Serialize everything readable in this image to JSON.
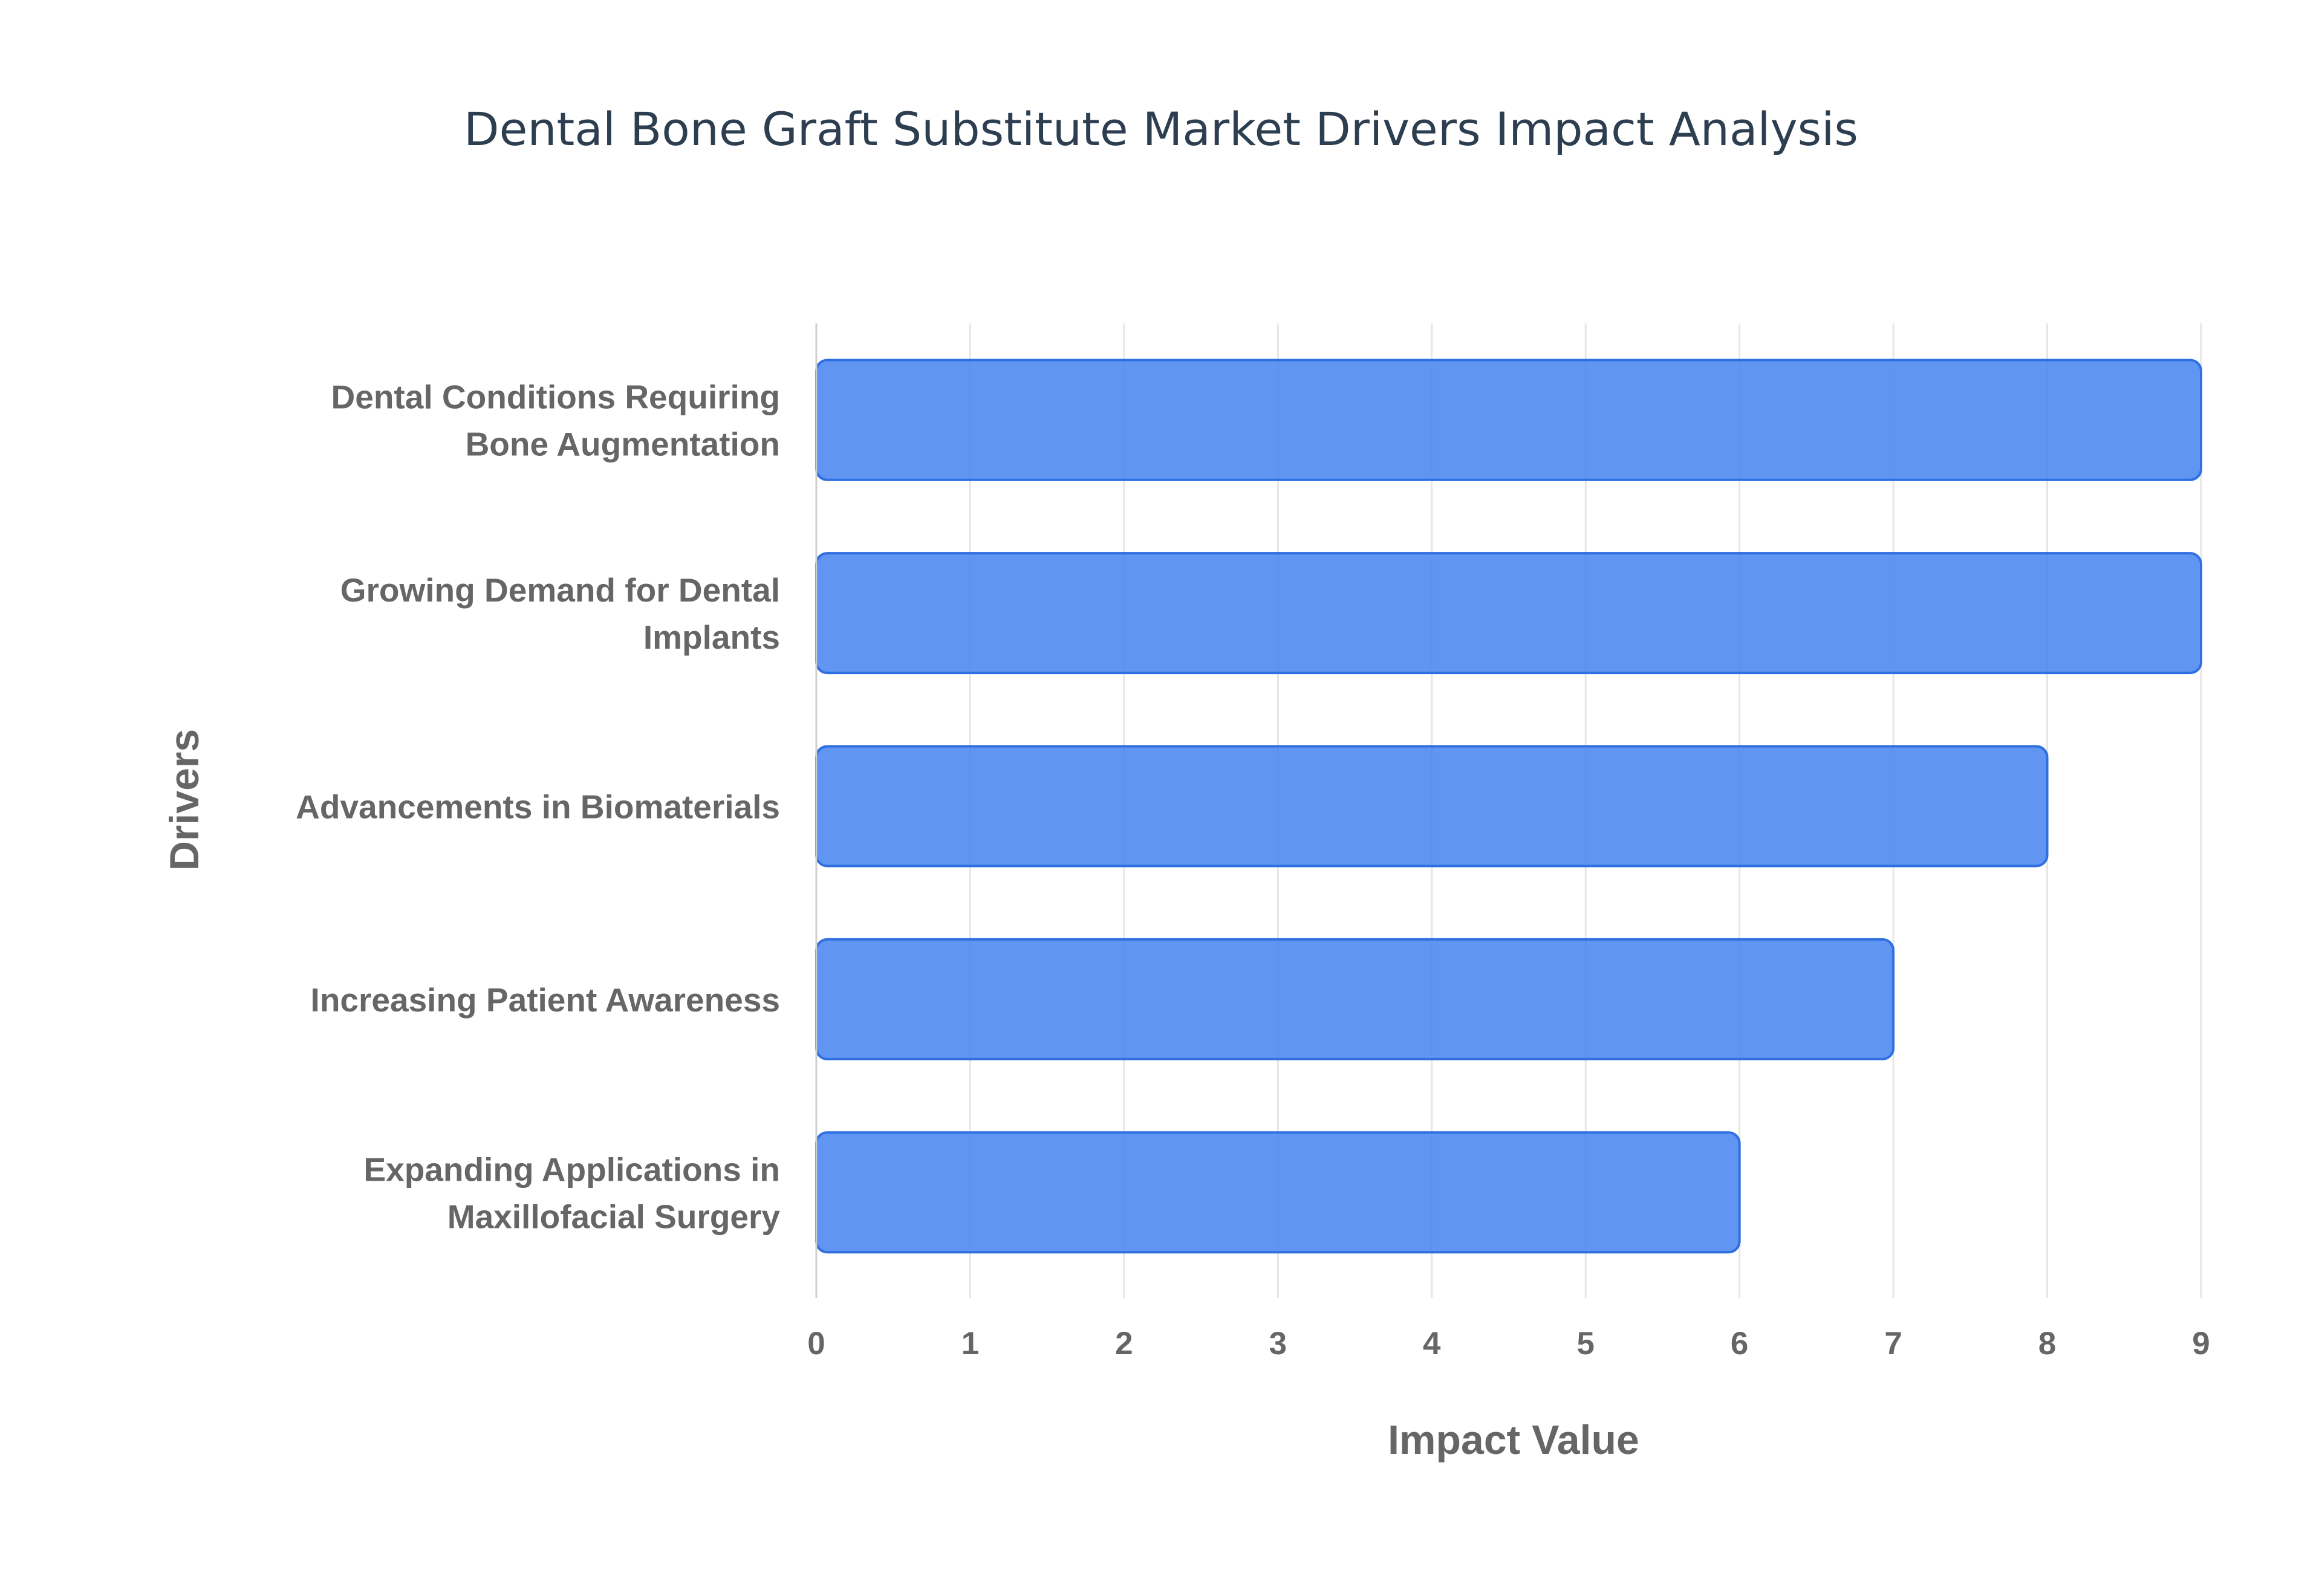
{
  "chart_data": {
    "type": "bar",
    "orientation": "horizontal",
    "title": "Dental Bone Graft Substitute Market Drivers Impact Analysis",
    "xlabel": "Impact Value",
    "ylabel": "Drivers",
    "categories": [
      [
        "Dental Conditions Requiring",
        "Bone Augmentation"
      ],
      [
        "Growing Demand for Dental",
        "Implants"
      ],
      [
        "Advancements in Biomaterials"
      ],
      [
        "Increasing Patient Awareness"
      ],
      [
        "Expanding Applications in",
        "Maxillofacial Surgery"
      ]
    ],
    "values": [
      9,
      9,
      8,
      7,
      6
    ],
    "xlim": [
      0,
      9
    ],
    "xticks": [
      0,
      1,
      2,
      3,
      4,
      5,
      6,
      7,
      8,
      9
    ],
    "grid": true,
    "legend": "none",
    "colors": {
      "bar_fill": "#4a86f0",
      "bar_edge": "#2f6fe0",
      "grid": "#e6e6e6",
      "axis": "#cfcfcf",
      "title": "#2c3e50",
      "label": "#666666"
    }
  }
}
